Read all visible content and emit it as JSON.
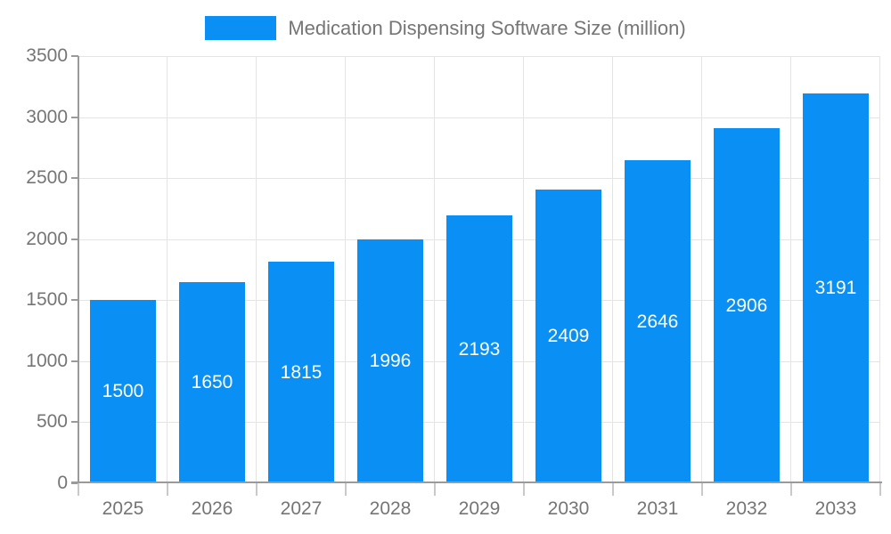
{
  "legend": {
    "label": "Medication Dispensing Software Size (million)"
  },
  "chart_data": {
    "type": "bar",
    "title": "Medication Dispensing Software Size (million)",
    "categories": [
      "2025",
      "2026",
      "2027",
      "2028",
      "2029",
      "2030",
      "2031",
      "2032",
      "2033"
    ],
    "values": [
      1500,
      1650,
      1815,
      1996,
      2193,
      2409,
      2646,
      2906,
      3191
    ],
    "xlabel": "",
    "ylabel": "",
    "ylim": [
      0,
      3500
    ],
    "y_ticks": [
      0,
      500,
      1000,
      1500,
      2000,
      2500,
      3000,
      3500
    ],
    "grid": true,
    "legend_position": "top-center",
    "value_labels": "inside-center",
    "colors": {
      "bar": "#0a90f5",
      "value_label": "#ffffff",
      "axis_text": "#757575",
      "grid_line": "#e4e4e4",
      "axis_line": "#9a9a9a"
    }
  }
}
